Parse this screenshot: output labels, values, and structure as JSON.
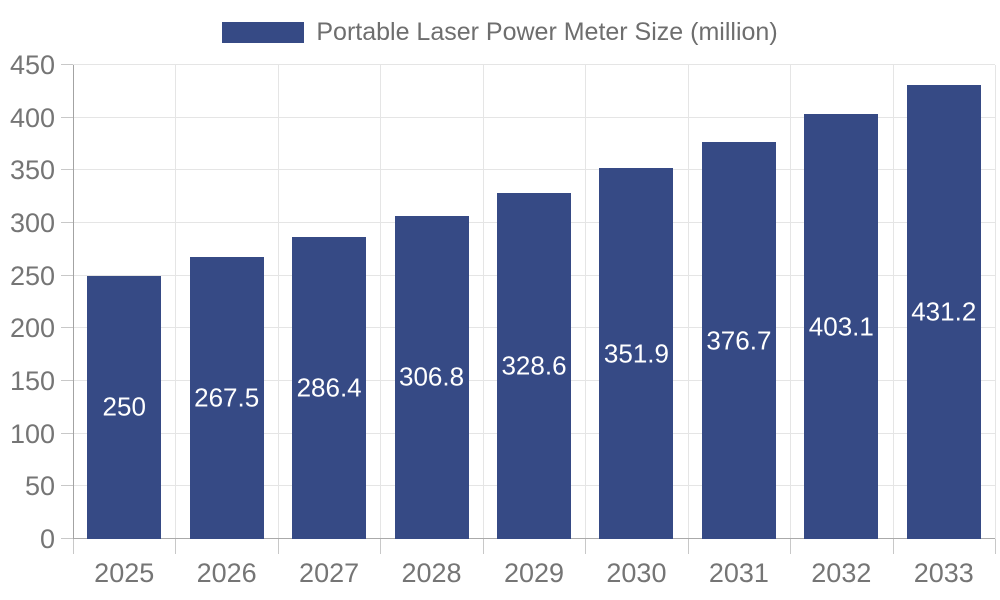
{
  "legend": {
    "label": "Portable Laser Power Meter Size (million)"
  },
  "colors": {
    "bar": "#364a85",
    "grid": "#e5e5e5",
    "y_axis_line": "#a3a3a3",
    "x_axis_line": "#aaaaaa",
    "tick": "#c8c8c8",
    "axis_text": "#757575",
    "value_text": "#ffffff",
    "background": "#ffffff"
  },
  "chart_data": {
    "type": "bar",
    "title": "Portable Laser Power Meter Size (million)",
    "categories": [
      "2025",
      "2026",
      "2027",
      "2028",
      "2029",
      "2030",
      "2031",
      "2032",
      "2033"
    ],
    "values": [
      250,
      267.5,
      286.4,
      306.8,
      328.6,
      351.9,
      376.7,
      403.1,
      431.2
    ],
    "value_labels": [
      "250",
      "267.5",
      "286.4",
      "306.8",
      "328.6",
      "351.9",
      "376.7",
      "403.1",
      "431.2"
    ],
    "xlabel": "",
    "ylabel": "",
    "ylim": [
      0,
      450
    ],
    "ytick_step": 50,
    "ytick_labels": [
      "0",
      "50",
      "100",
      "150",
      "200",
      "250",
      "300",
      "350",
      "400",
      "450"
    ],
    "grid": true,
    "legend_position": "top",
    "value_label_position": "inside-center"
  }
}
